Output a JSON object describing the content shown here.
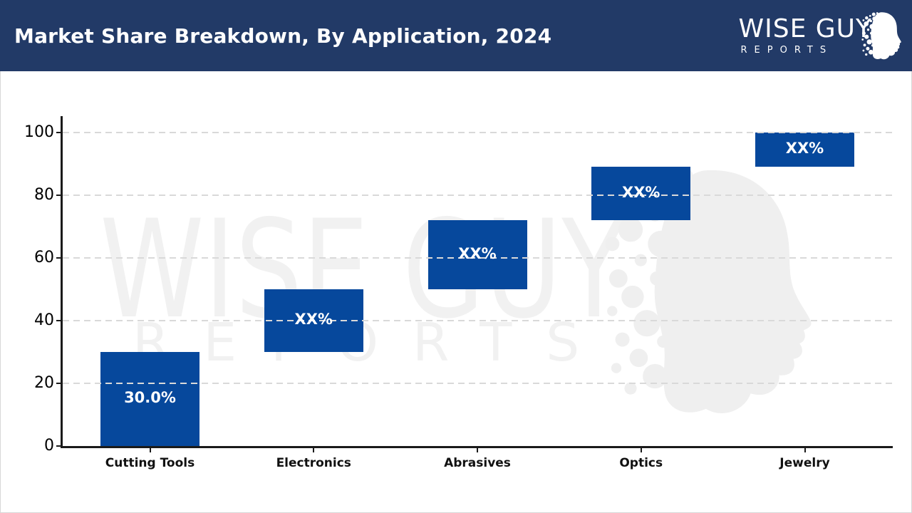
{
  "header": {
    "title": "Market Share Breakdown, By Application, 2024",
    "logo": {
      "line1": "WISE GUY",
      "line2": "REPORTS"
    }
  },
  "watermark": {
    "line1": "WISE GUY",
    "line2": "REPORTS"
  },
  "chart_data": {
    "type": "bar",
    "subtype": "waterfall",
    "title": "Market Share Breakdown, By Application, 2024",
    "categories": [
      "Cutting Tools",
      "Electronics",
      "Abrasives",
      "Optics",
      "Jewelry"
    ],
    "series": [
      {
        "name": "Market Share",
        "starts": [
          0,
          30,
          50,
          72,
          89
        ],
        "values": [
          30,
          20,
          22,
          17,
          11
        ],
        "bar_labels": [
          "30.0%",
          "XX%",
          "XX%",
          "XX%",
          "XX%"
        ]
      }
    ],
    "xlabel": "",
    "ylabel": "",
    "ylim": [
      0,
      100
    ],
    "yticks": [
      0,
      20,
      40,
      60,
      80,
      100
    ],
    "grid": "horizontal-dashed",
    "legend": "none",
    "bar_color": "#06489c",
    "bar_label_color": "#ffffff"
  }
}
